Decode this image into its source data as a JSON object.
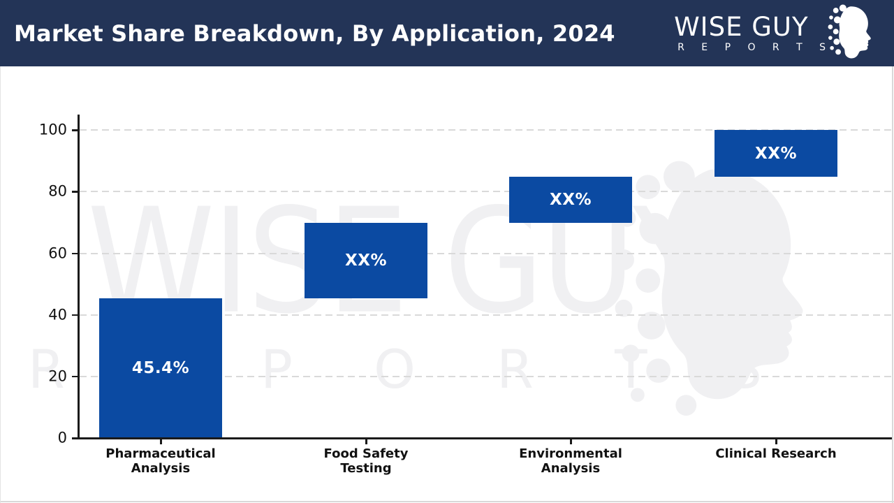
{
  "header": {
    "title": "Market Share Breakdown, By Application, 2024",
    "background_color": "#233457",
    "logo": {
      "line1": "WISE GUY",
      "line2": "R E P O R T S"
    }
  },
  "watermark": {
    "line1": "WISE GUY",
    "line2": "R E P O R T S"
  },
  "colors": {
    "bar": "#0b4aa2",
    "bar_label": "#ffffff",
    "header_navy": "#233457",
    "grid": "#d9d9d9",
    "axis": "#1a1a1a",
    "watermark_gray": "#f0f0f2"
  },
  "chart_data": {
    "type": "bar",
    "subtype": "waterfall-stacked-steps",
    "title": "Market Share Breakdown, By Application, 2024",
    "xlabel": "",
    "ylabel": "",
    "ylim": [
      0,
      105
    ],
    "yticks": [
      0,
      20,
      40,
      60,
      80,
      100
    ],
    "grid": "horizontal-dashed",
    "legend": "none",
    "categories": [
      [
        "Pharmaceutical",
        "Analysis"
      ],
      [
        "Food Safety",
        "Testing"
      ],
      [
        "Environmental",
        "Analysis"
      ],
      [
        "Clinical Research"
      ]
    ],
    "segments": [
      {
        "category": "Pharmaceutical Analysis",
        "start": 0,
        "end": 45.4,
        "label": "45.4%"
      },
      {
        "category": "Food Safety Testing",
        "start": 45.4,
        "end": 69.8,
        "label": "XX%"
      },
      {
        "category": "Environmental Analysis",
        "start": 69.8,
        "end": 84.8,
        "label": "XX%"
      },
      {
        "category": "Clinical Research",
        "start": 84.8,
        "end": 100,
        "label": "XX%"
      }
    ]
  }
}
